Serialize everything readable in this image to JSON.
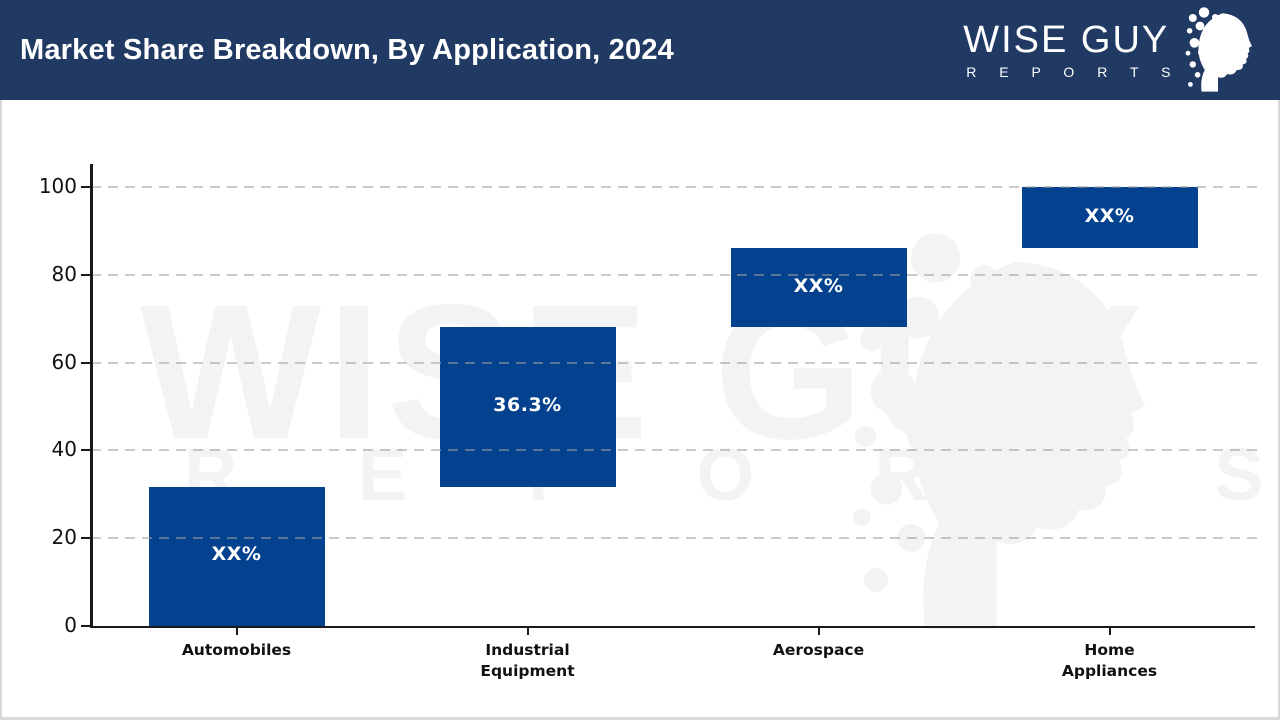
{
  "header": {
    "title": "Market Share Breakdown, By Application, 2024",
    "logo": {
      "line1": "WISE GUY",
      "line2": "R E P O R T S"
    }
  },
  "watermark": {
    "line1": "WISE GUY",
    "line2": "R E P O R T S"
  },
  "chart_data": {
    "type": "bar",
    "subtype": "floating-waterfall",
    "title": "Market Share Breakdown, By Application, 2024",
    "categories": [
      "Automobiles",
      "Industrial Equipment",
      "Aerospace",
      "Home Appliances"
    ],
    "bars": [
      {
        "category": "Automobiles",
        "start": 0,
        "end": 31.7,
        "height": 31.7,
        "label": "XX%"
      },
      {
        "category": "Industrial Equipment",
        "start": 31.7,
        "end": 68.0,
        "height": 36.3,
        "label": "36.3%"
      },
      {
        "category": "Aerospace",
        "start": 68.0,
        "end": 86.0,
        "height": 18.0,
        "label": "XX%"
      },
      {
        "category": "Home Appliances",
        "start": 86.0,
        "end": 100.0,
        "height": 14.0,
        "label": "XX%"
      }
    ],
    "ylim": [
      0,
      100
    ],
    "yticks": [
      0,
      20,
      40,
      60,
      80,
      100
    ],
    "grid": {
      "horizontal": true,
      "style": "dashed"
    },
    "legend": null
  },
  "colors": {
    "header_bg": "#203A64",
    "bar": "#04428F",
    "bar_label": "#FFFFFF",
    "axis": "#1a1a1a",
    "watermark": "#f2f3f5"
  }
}
